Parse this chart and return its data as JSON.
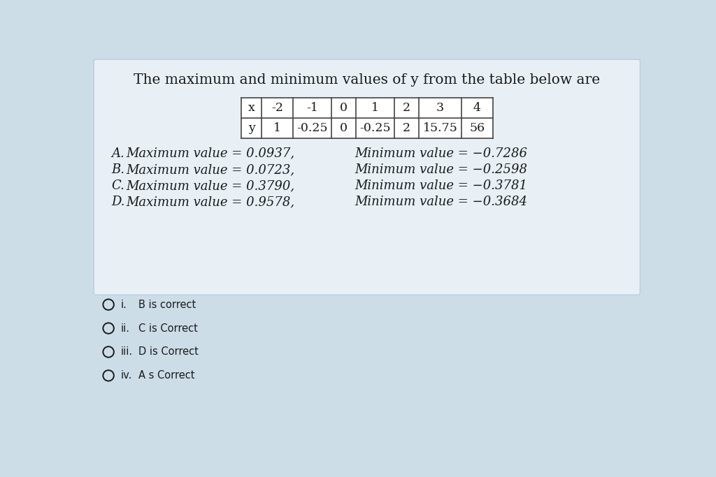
{
  "title": "The maximum and minimum values of y from the table below are",
  "table_x_header": "x",
  "table_y_header": "y",
  "table_x_values": [
    "-2",
    "-1",
    "0",
    "1",
    "2",
    "3",
    "4"
  ],
  "table_y_values": [
    "1",
    "-0.25",
    "0",
    "-0.25",
    "2",
    "15.75",
    "56"
  ],
  "options": [
    {
      "label": "A.",
      "max_text": "Maximum value = 0.0937,",
      "min_text": "Minimum value = −0.7286"
    },
    {
      "label": "B.",
      "max_text": "Maximum value = 0.0723,",
      "min_text": "Minimum value = −0.2598"
    },
    {
      "label": "C.",
      "max_text": "Maximum value = 0.3790,",
      "min_text": "Minimum value = −0.3781"
    },
    {
      "label": "D.",
      "max_text": "Maximum value = 0.9578,",
      "min_text": "Minimum value = −0.3684"
    }
  ],
  "radio_options": [
    {
      "roman": "i.",
      "text": "B is correct"
    },
    {
      "roman": "ii.",
      "text": "C is Correct"
    },
    {
      "roman": "iii.",
      "text": "D is Correct"
    },
    {
      "roman": "iv.",
      "text": "A s Correct"
    }
  ],
  "outer_bg_color": "#ccdde8",
  "inner_bg_color": "#ddeaf3",
  "white_box_color": "#e8f0f5",
  "table_border_color": "#444444",
  "text_color": "#1a1a1a",
  "title_fontsize": 14.5,
  "option_fontsize": 13,
  "radio_fontsize": 10.5,
  "table_fontsize": 12.5
}
